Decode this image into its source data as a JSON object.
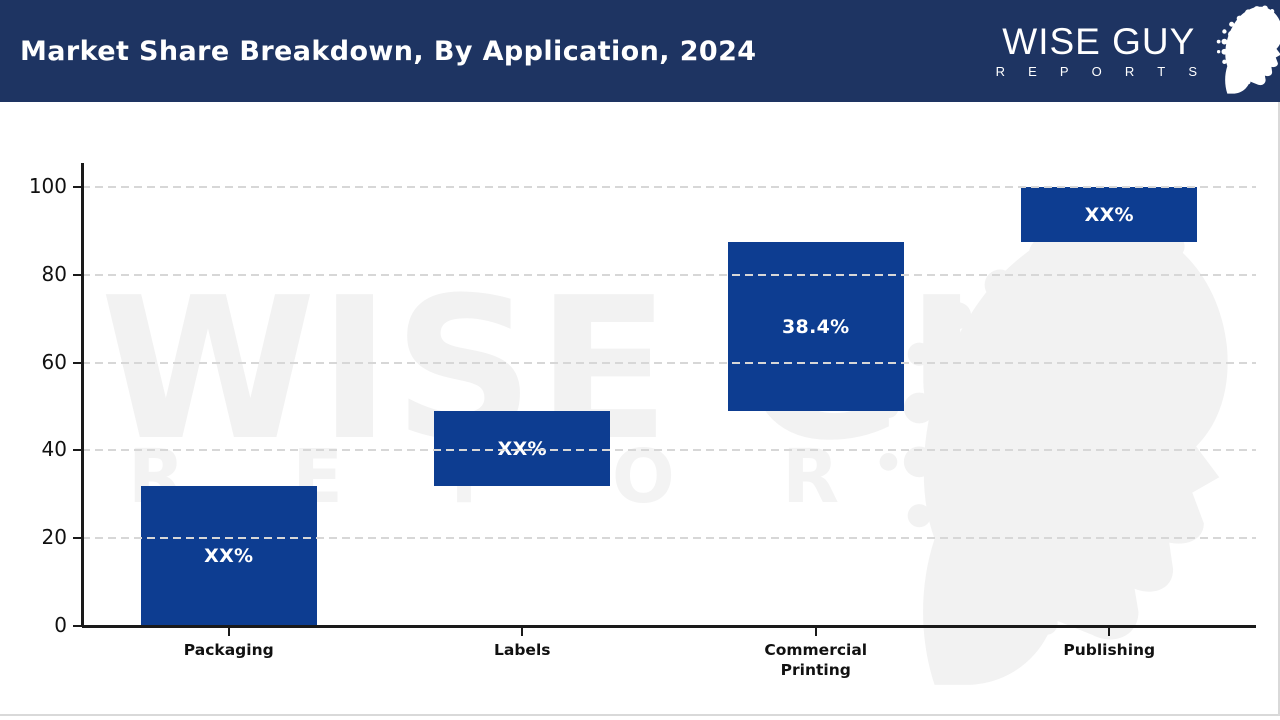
{
  "header": {
    "title": "Market Share Breakdown, By Application, 2024",
    "logo": {
      "line1": "WISE GUY",
      "line2": "REPORTS"
    }
  },
  "watermark": {
    "line1": "WISE GUY",
    "line2": "REPORTS"
  },
  "chart_data": {
    "type": "bar",
    "subtype": "floating-segment-waterfall",
    "title": "Market Share Breakdown, By Application, 2024",
    "categories": [
      "Packaging",
      "Labels",
      "Commercial Printing",
      "Publishing"
    ],
    "bars": [
      {
        "category": "Packaging",
        "start": 0,
        "end": 31.8,
        "label": "XX%"
      },
      {
        "category": "Labels",
        "start": 31.8,
        "end": 49.0,
        "label": "XX%"
      },
      {
        "category": "Commercial Printing",
        "start": 49.0,
        "end": 87.4,
        "label": "38.4%"
      },
      {
        "category": "Publishing",
        "start": 87.4,
        "end": 100,
        "label": "XX%"
      }
    ],
    "xlabel": "",
    "ylabel": "",
    "ylim": [
      0,
      105.5
    ],
    "yticks": [
      0,
      20,
      40,
      60,
      80,
      100
    ],
    "grid": "horizontal-dashed",
    "legend": "none",
    "bar_color": "#0d3d91",
    "bar_label_color": "#ffffff"
  },
  "colors": {
    "header_bg": "#1e3462",
    "bar": "#0d3d91",
    "grid": "#d7d7d7",
    "axis": "#1a1a1a",
    "watermark": "#f2f2f2"
  }
}
